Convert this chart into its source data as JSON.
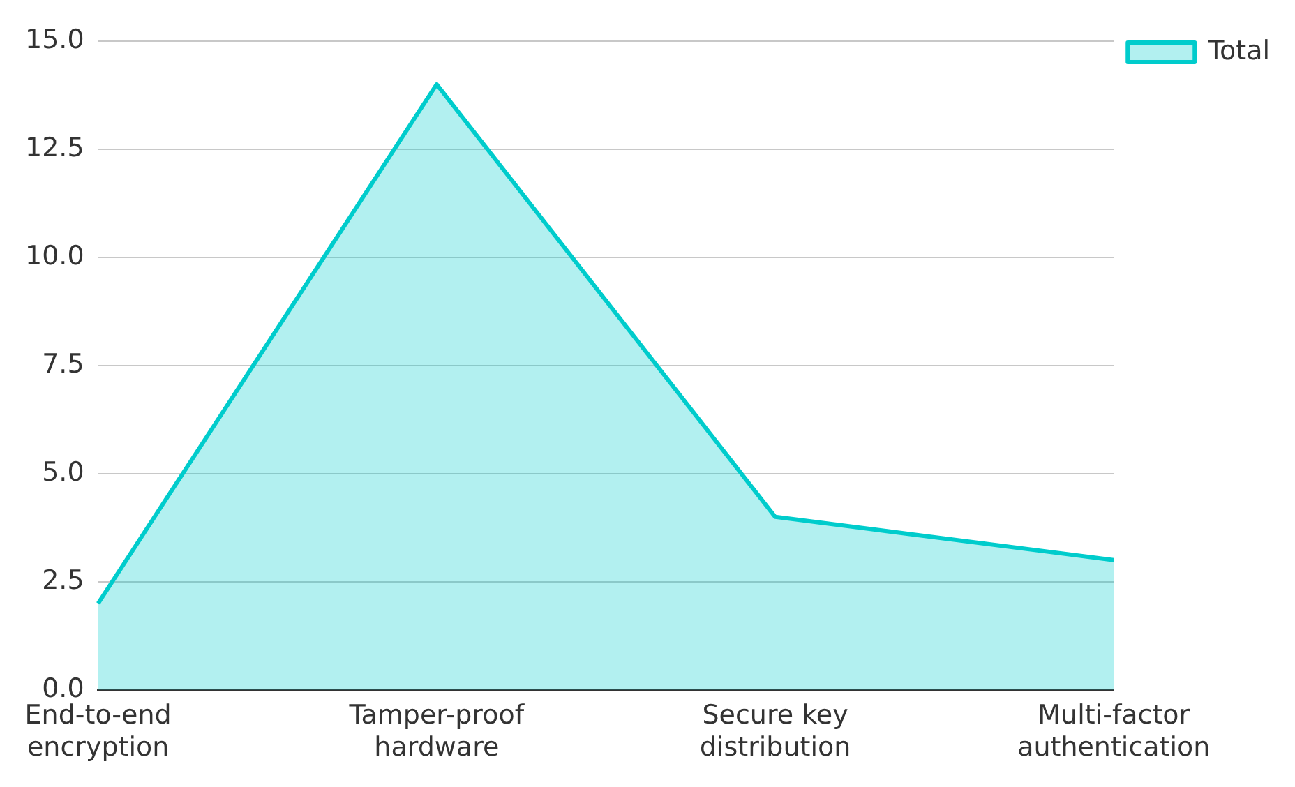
{
  "chart_data": {
    "type": "area",
    "categories": [
      "End-to-end encryption",
      "Tamper-proof hardware",
      "Secure key distribution",
      "Multi-factor authentication"
    ],
    "series": [
      {
        "name": "Total",
        "color": "#00cccc",
        "values": [
          2,
          14,
          4,
          3
        ]
      }
    ],
    "ylim": [
      0,
      15
    ],
    "yticks": [
      {
        "value": 0,
        "label": "0.0"
      },
      2.5,
      {
        "value": 5,
        "label": "5.0"
      },
      7.5,
      {
        "value": 10,
        "label": "10.0"
      },
      12.5,
      {
        "value": 15,
        "label": "15.0"
      }
    ],
    "grid": "y",
    "legend": "top right",
    "marker": "none",
    "line_style": "solid"
  }
}
